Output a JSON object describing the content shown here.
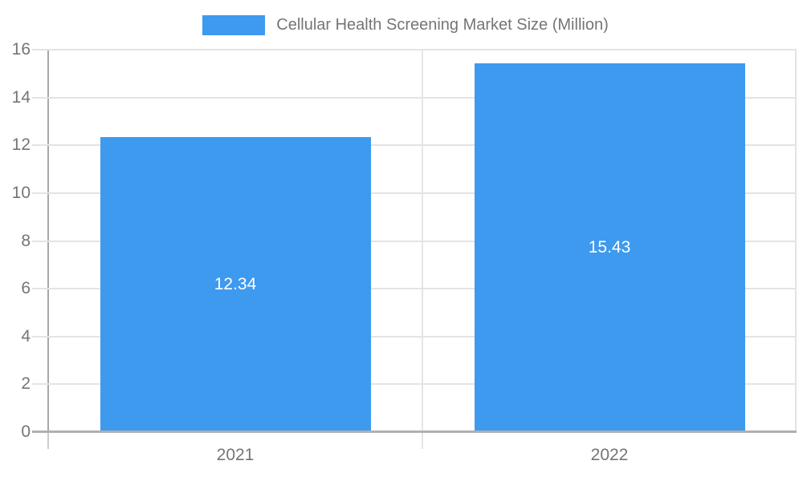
{
  "legend": {
    "label": "Cellular Health Screening Market Size (Million)"
  },
  "chart_data": {
    "type": "bar",
    "title": "Cellular Health Screening Market Size (Million)",
    "categories": [
      "2021",
      "2022"
    ],
    "series": [
      {
        "name": "Cellular Health Screening Market Size (Million)",
        "values": [
          12.34,
          15.43
        ]
      }
    ],
    "value_labels": [
      "12.34",
      "15.43"
    ],
    "xlabel": "",
    "ylabel": "",
    "ylim": [
      0,
      16
    ],
    "yticks": [
      0,
      2,
      4,
      6,
      8,
      10,
      12,
      14,
      16
    ],
    "grid": true,
    "legend_position": "top-center",
    "colors": {
      "bar": "#3E9AEF",
      "grid": "#E4E4E4",
      "axis_y": "#A8A8A8",
      "axis_x": "#B0B0B0",
      "axis_ext": "#CCCCCC",
      "tick_text": "#757575",
      "value_text": "#FFFFFF"
    }
  }
}
